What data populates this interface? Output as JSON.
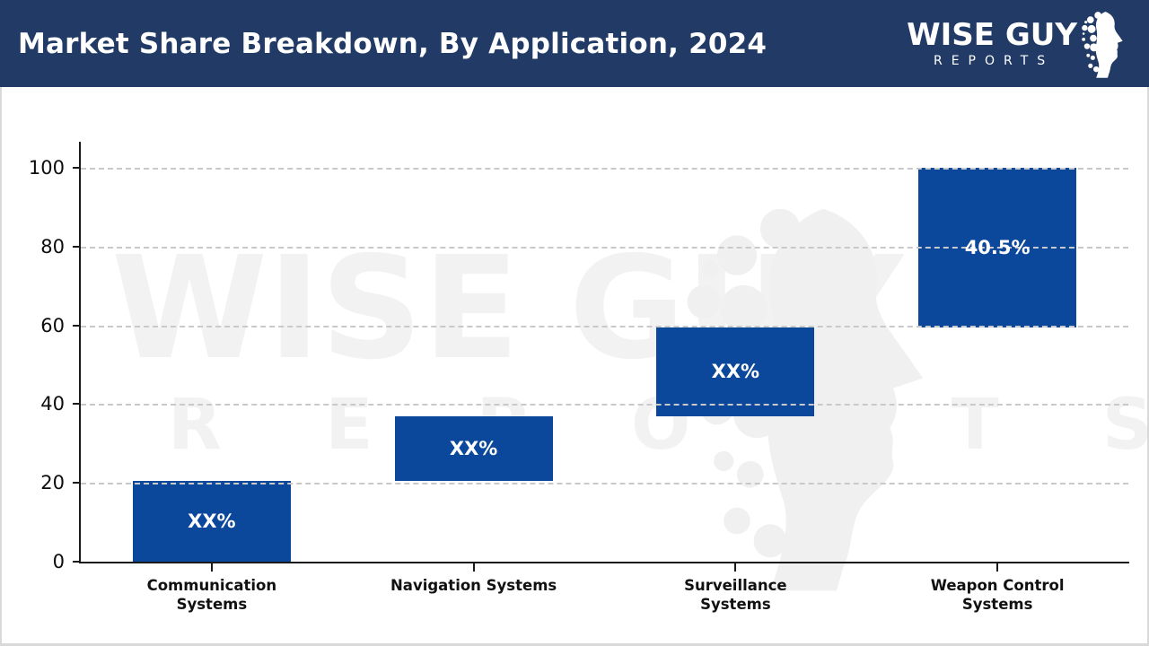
{
  "header": {
    "title": "Market Share Breakdown, By Application, 2024",
    "bg_color": "#213a66",
    "logo": {
      "wordmark": "WISE GUY",
      "subtitle": "REPORTS"
    }
  },
  "watermark": {
    "line1": "WISE GUY",
    "line2": "R E P O R T S"
  },
  "chart_data": {
    "type": "bar",
    "subtype": "floating-segment (waterfall-style market share breakdown)",
    "title": "Market Share Breakdown, By Application, 2024",
    "categories": [
      "Communication Systems",
      "Navigation Systems",
      "Surveillance Systems",
      "Weapon Control Systems"
    ],
    "category_label_lines": [
      [
        "Communication",
        "Systems"
      ],
      [
        "Navigation Systems"
      ],
      [
        "Surveillance",
        "Systems"
      ],
      [
        "Weapon Control",
        "Systems"
      ]
    ],
    "bars": [
      {
        "category": "Communication Systems",
        "from": 0,
        "to": 20.5,
        "label": "XX%"
      },
      {
        "category": "Navigation Systems",
        "from": 20.5,
        "to": 37,
        "label": "XX%"
      },
      {
        "category": "Surveillance Systems",
        "from": 37,
        "to": 59.5,
        "label": "XX%"
      },
      {
        "category": "Weapon Control Systems",
        "from": 59.5,
        "to": 100,
        "label": "40.5%"
      }
    ],
    "ylim": [
      0,
      100
    ],
    "yticks": [
      0,
      20,
      40,
      60,
      80,
      100
    ],
    "xlabel": "",
    "ylabel": "",
    "grid": "horizontal dashed, drawn over bars",
    "legend": "none",
    "bar_color": "#0b479b",
    "bar_label_color": "#ffffff",
    "grid_color": "#c9c9c9",
    "axis_color": "#1a1a1a"
  }
}
